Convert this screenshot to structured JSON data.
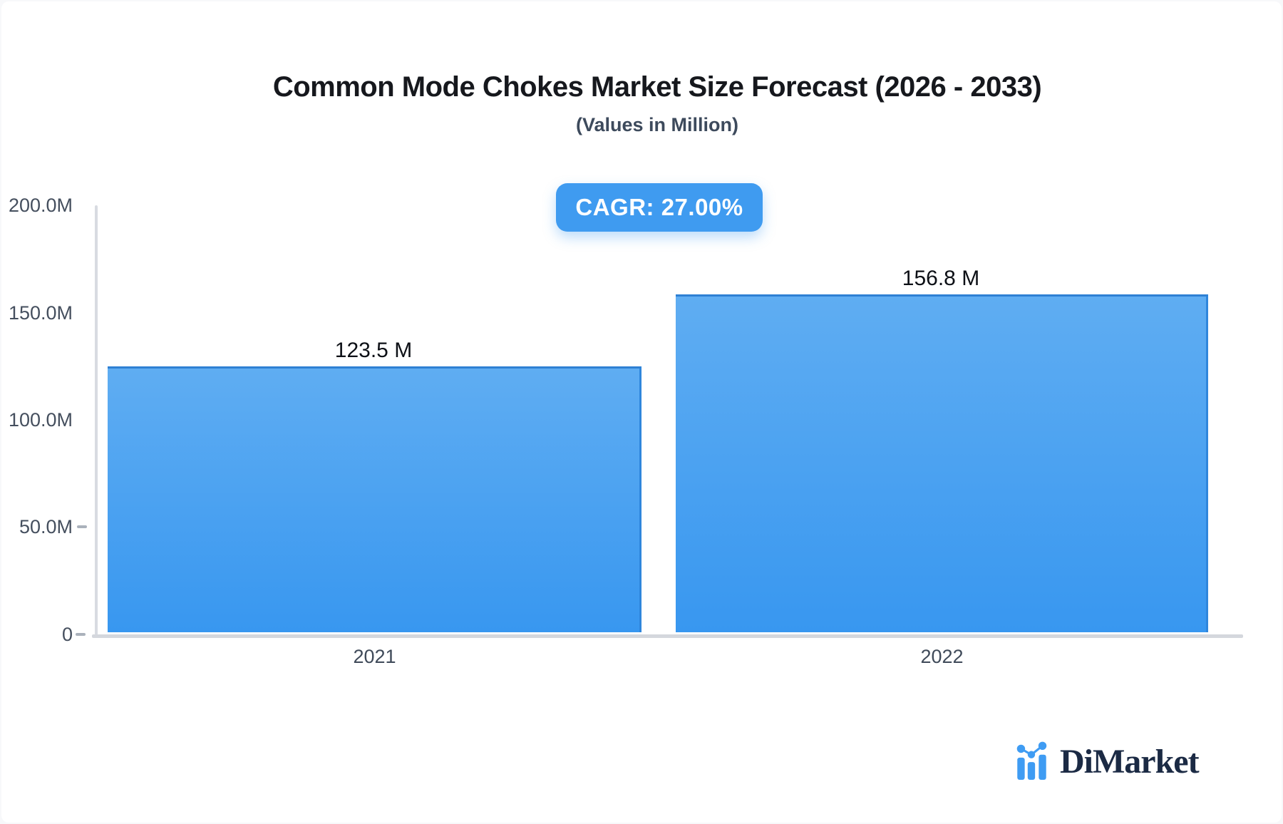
{
  "header": {
    "title": "Common Mode Chokes Market Size Forecast (2026 - 2033)",
    "subtitle": "(Values in Million)"
  },
  "badge": {
    "label": "CAGR: 27.00%",
    "color": "#3f9bf0"
  },
  "chart_data": {
    "type": "bar",
    "categories": [
      "2021",
      "2022"
    ],
    "values": [
      123.5,
      156.8
    ],
    "value_labels": [
      "123.5 M",
      "156.8 M"
    ],
    "unit": "Million",
    "title": "Common Mode Chokes Market Size Forecast (2026 - 2033)",
    "subtitle": "(Values in Million)",
    "annotation": "CAGR: 27.00%",
    "ylim": [
      0,
      200
    ],
    "yticks": [
      "200.0M",
      "150.0M",
      "100.0M",
      "50.0M",
      "0"
    ],
    "grid": false,
    "legend": false,
    "bar_color_top": "#5fadf2",
    "bar_color_bottom": "#3897f0",
    "axis_color": "#d8dbe1"
  },
  "logo": {
    "text": "DiMarket",
    "icon": "bar-chart-logo-icon",
    "text_color": "#1b2a44",
    "icon_color": "#3f9cf3"
  }
}
